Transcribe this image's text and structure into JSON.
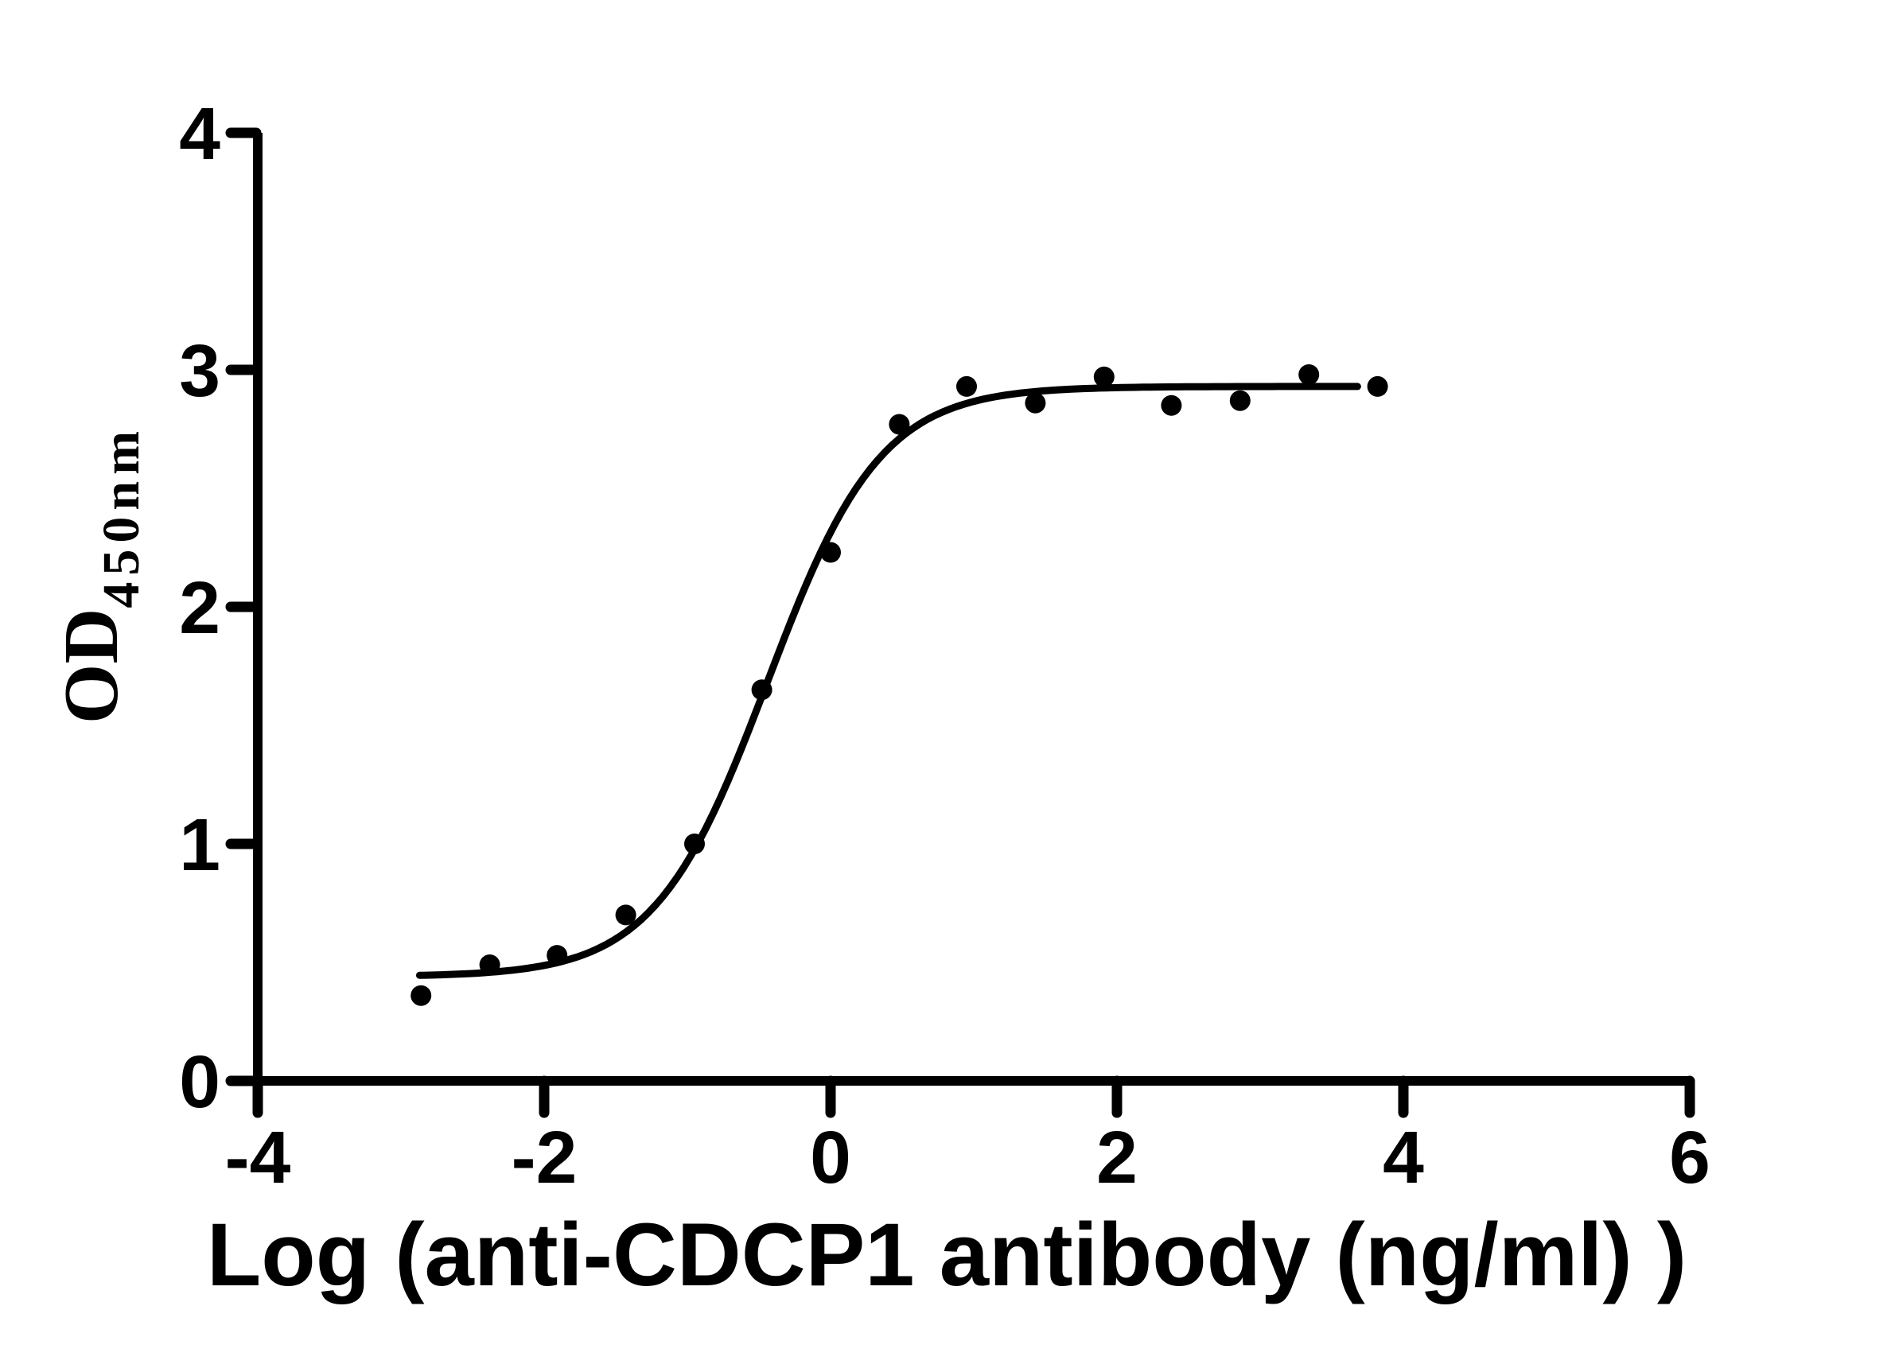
{
  "figure": {
    "background_color": "#ffffff",
    "ink_color": "#000000",
    "title": "",
    "legend": "none"
  },
  "chart_data": {
    "type": "scatter",
    "title": "",
    "xlabel": "Log (anti-CDCP1 antibody (ng/ml) )",
    "ylabel": "OD",
    "ylabel_subscript": "450nm",
    "xlim": [
      -4,
      6
    ],
    "ylim": [
      0,
      4
    ],
    "grid": false,
    "legend_position": "none",
    "x_tick_labels": [
      "-4",
      "-2",
      "0",
      "2",
      "4",
      "6"
    ],
    "y_tick_labels": [
      "0",
      "1",
      "2",
      "3",
      "4"
    ],
    "points": [
      [
        -2.86,
        0.36
      ],
      [
        -2.38,
        0.49
      ],
      [
        -1.91,
        0.53
      ],
      [
        -1.43,
        0.7
      ],
      [
        -0.95,
        1.0
      ],
      [
        -0.48,
        1.65
      ],
      [
        0.0,
        2.23
      ],
      [
        0.48,
        2.77
      ],
      [
        0.95,
        2.93
      ],
      [
        1.43,
        2.86
      ],
      [
        1.91,
        2.97
      ],
      [
        2.38,
        2.85
      ],
      [
        2.86,
        2.87
      ],
      [
        3.34,
        2.98
      ],
      [
        3.82,
        2.93
      ]
    ],
    "fit_curve": {
      "model": "4PL sigmoidal",
      "bottom": 0.44,
      "top": 2.93,
      "log_ec50": -0.44,
      "hill_slope": 1.1,
      "x_start": -2.87,
      "x_end": 3.72
    }
  }
}
